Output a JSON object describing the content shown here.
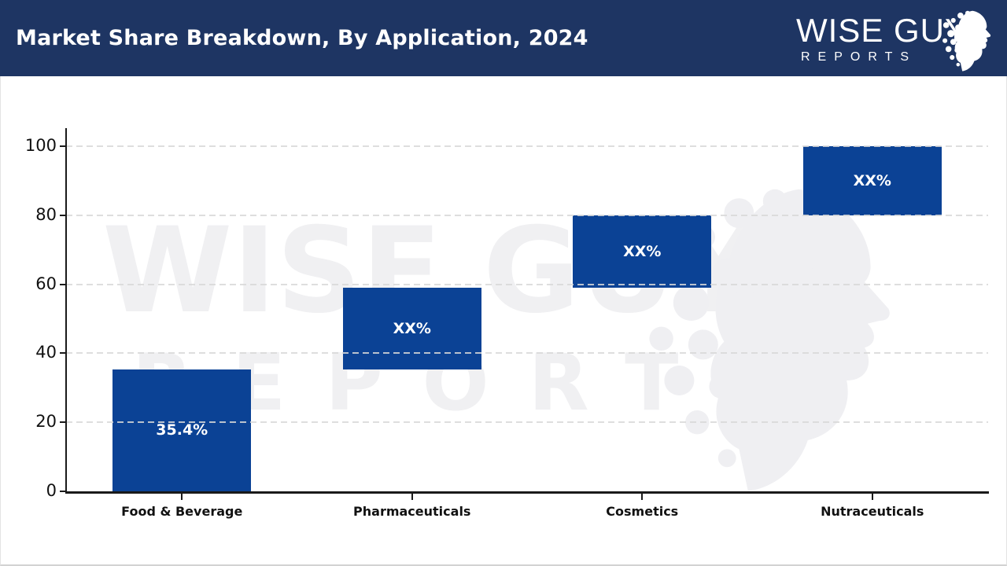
{
  "header": {
    "title": "Market Share Breakdown, By Application, 2024",
    "logo": {
      "line1": "WISE GUY",
      "line2": "REPORTS"
    }
  },
  "watermark": {
    "line1": "WISE GUY",
    "line2": "REPORTS"
  },
  "chart_data": {
    "type": "bar",
    "subtype": "waterfall",
    "title": "Market Share Breakdown, By Application, 2024",
    "categories": [
      "Food & Beverage",
      "Pharmaceuticals",
      "Cosmetics",
      "Nutraceuticals"
    ],
    "segments": [
      {
        "category": "Food & Beverage",
        "start": 0,
        "end": 35.4,
        "label": "35.4%"
      },
      {
        "category": "Pharmaceuticals",
        "start": 35.4,
        "end": 59,
        "label": "XX%"
      },
      {
        "category": "Cosmetics",
        "start": 59,
        "end": 80,
        "label": "XX%"
      },
      {
        "category": "Nutraceuticals",
        "start": 80,
        "end": 100,
        "label": "XX%"
      }
    ],
    "values": [
      35.4,
      23.6,
      21,
      20
    ],
    "xlabel": "",
    "ylabel": "",
    "ylim": [
      0,
      100
    ],
    "yticks": [
      0,
      20,
      40,
      60,
      80,
      100
    ],
    "grid": "horizontal-dashed",
    "legend": "none",
    "bar_color": "#0b4295",
    "bar_label_color": "#ffffff"
  },
  "colors": {
    "header_bg": "#1e3563",
    "bar": "#0b4295",
    "axis": "#1a1a1a",
    "gridline": "#d8d8d8",
    "watermark": "#f0f0f2"
  }
}
